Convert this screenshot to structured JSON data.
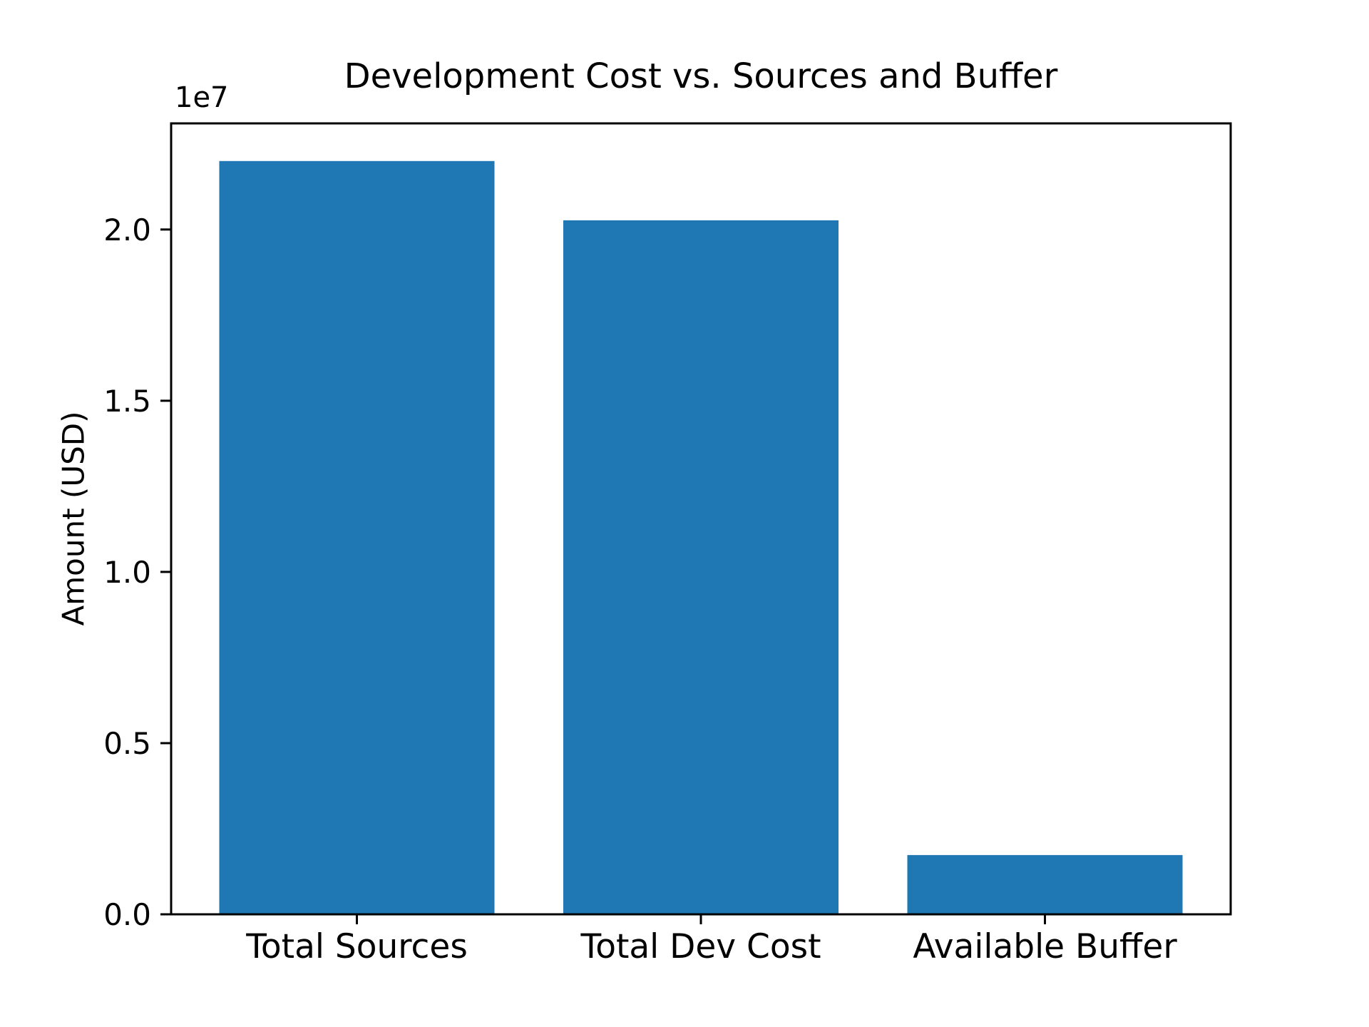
{
  "chart_data": {
    "type": "bar",
    "title": "Development Cost vs. Sources and Buffer",
    "categories": [
      "Total Sources",
      "Total Dev Cost",
      "Available Buffer"
    ],
    "values": [
      22000000,
      20270000,
      1730000
    ],
    "xlabel": "",
    "ylabel": "Amount (USD)",
    "ylim": [
      0,
      23100000
    ],
    "y_ticks": [
      {
        "value": 0,
        "label": "0.0"
      },
      {
        "value": 5000000,
        "label": "0.5"
      },
      {
        "value": 10000000,
        "label": "1.0"
      },
      {
        "value": 15000000,
        "label": "1.5"
      },
      {
        "value": 20000000,
        "label": "2.0"
      }
    ],
    "offset_label": "1e7",
    "bar_color": "#1f77b4",
    "bar_width_frac": 0.8,
    "grid": false,
    "legend_position": "none",
    "axis_color": "#000000",
    "background_color": "#ffffff"
  }
}
